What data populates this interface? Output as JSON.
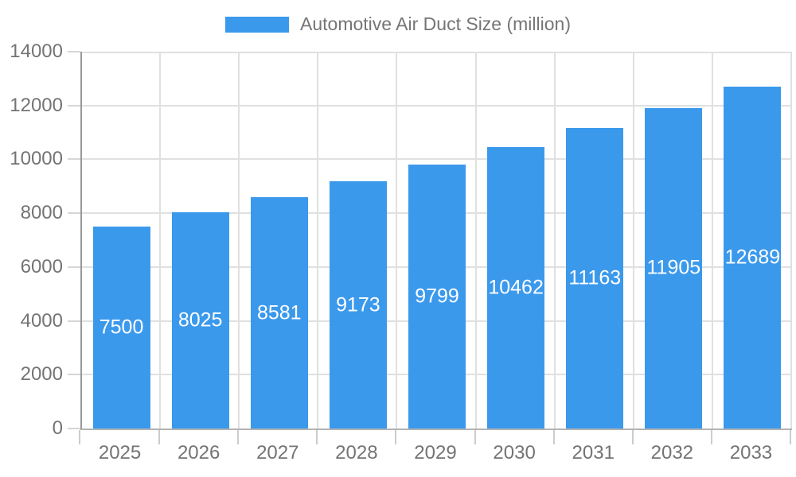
{
  "chart_data": {
    "type": "bar",
    "title": "Automotive Air Duct Size (million)",
    "series_name": "Automotive Air Duct Size (million)",
    "categories": [
      "2025",
      "2026",
      "2027",
      "2028",
      "2029",
      "2030",
      "2031",
      "2032",
      "2033"
    ],
    "values": [
      7500,
      8025,
      8581,
      9173,
      9799,
      10462,
      11163,
      11905,
      12689
    ],
    "xlabel": "",
    "ylabel": "",
    "ylim": [
      0,
      14000
    ],
    "yticks": [
      0,
      2000,
      4000,
      6000,
      8000,
      10000,
      12000,
      14000
    ],
    "grid": true,
    "legend_position": "top",
    "value_labels_position": "inside-center",
    "colors": {
      "bar": "#3b99ec",
      "grid": "#e0e0e0",
      "y_axis_line": "#999999",
      "x_axis_line": "#b3b3b3",
      "tick": "#d6d6d6",
      "axis_text": "#747474",
      "legend_text": "#757575",
      "value_label": "#ffffff",
      "background": "#ffffff"
    }
  }
}
